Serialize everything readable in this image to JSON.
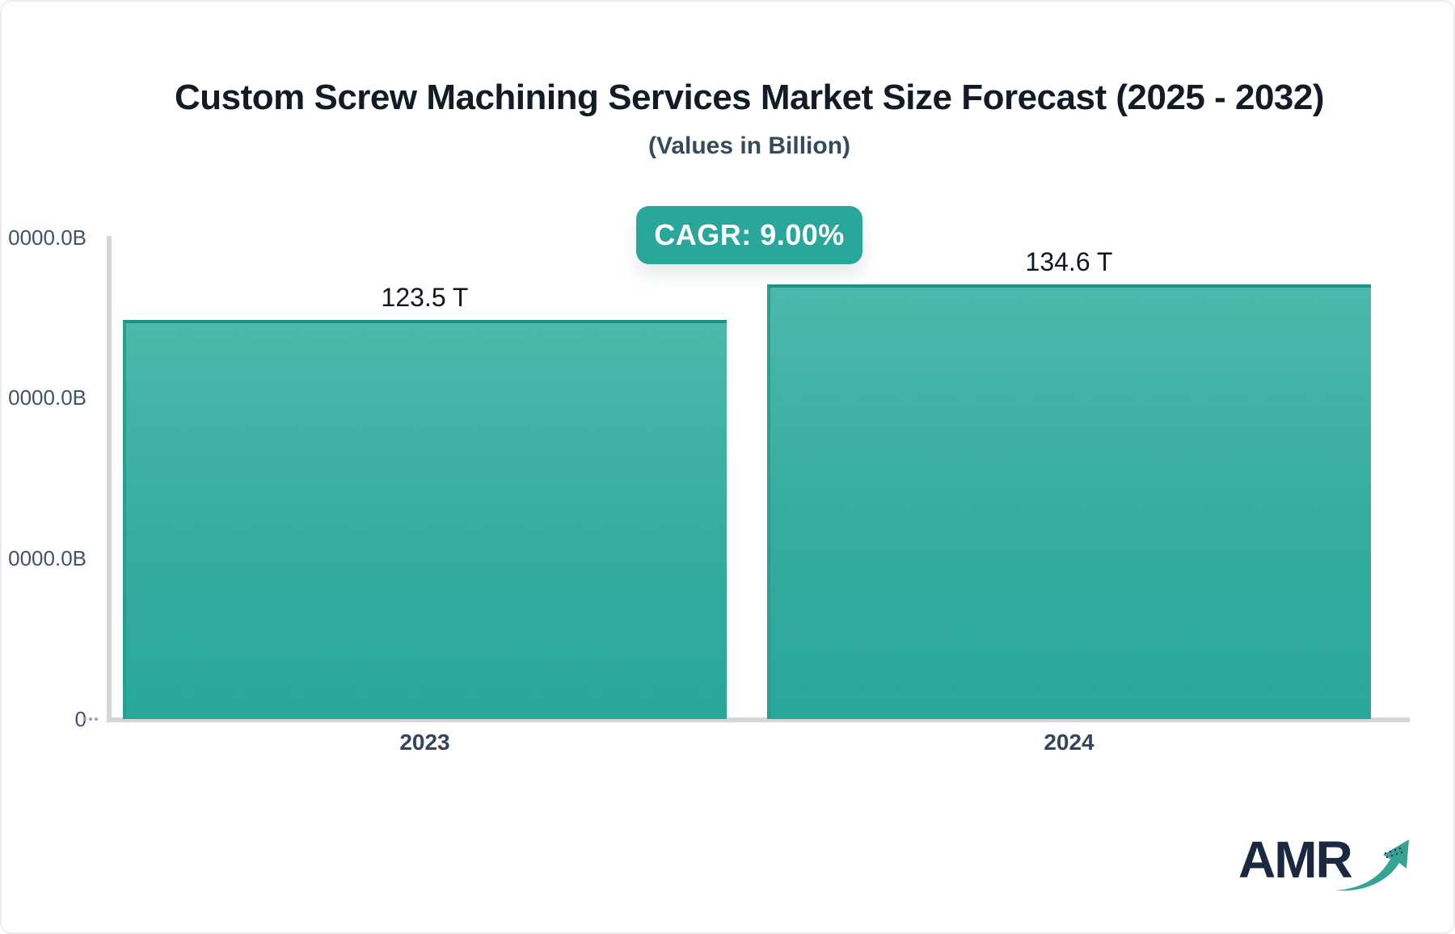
{
  "title": "Custom Screw Machining Services Market Size Forecast (2025 - 2032)",
  "subtitle": "(Values in Billion)",
  "badge": {
    "label": "CAGR: 9.00%"
  },
  "logo": {
    "text": "AMR"
  },
  "colors": {
    "badge_bg": "#2aa79b",
    "bar_top": "#4bb9ac",
    "bar_bottom": "#29a79b",
    "bar_border": "#1f9287",
    "axis_line": "#d3d7da",
    "title_text": "#131c26",
    "subtitle_text": "#344a5e",
    "y_tick_text": "#41526b",
    "x_tick_text": "#33445c",
    "value_label_text": "#10161d",
    "logo_text": "#1b2940",
    "logo_arrow": "#38a293"
  },
  "chart_data": {
    "type": "bar",
    "title": "Custom Screw Machining Services Market Size Forecast (2025 - 2032)",
    "subtitle": "(Values in Billion)",
    "categories": [
      "2023",
      "2024"
    ],
    "values": [
      123.5,
      134.6
    ],
    "value_labels": [
      "123.5 T",
      "134.6 T"
    ],
    "xlabel": "",
    "ylabel": "",
    "ylim": [
      0,
      150
    ],
    "yticks": [
      {
        "label": "0",
        "value": 0
      },
      {
        "label": "0000.0B",
        "value": 49.7
      },
      {
        "label": "0000.0B",
        "value": 99.4
      },
      {
        "label": "0000.0B",
        "value": 149.1
      }
    ],
    "grid": false,
    "legend": false,
    "annotations": [
      "CAGR: 9.00%"
    ]
  }
}
